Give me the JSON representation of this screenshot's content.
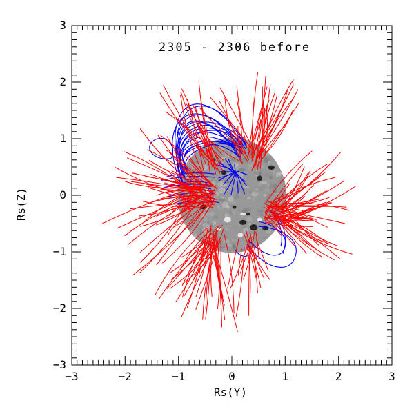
{
  "title": "2305 - 2306 before",
  "colors": {
    "open_field": "#ff0000",
    "closed_field": "#0000ff",
    "axis": "#000000",
    "background": "#ffffff",
    "sun_base": "#989898",
    "sun_dark_spot": "#161616",
    "sun_bright_spot": "#f5f5f5"
  },
  "chart_data": {
    "type": "line",
    "title": "2305 - 2306 before",
    "xlabel": "Rs(Y)",
    "ylabel": "Rs(Z)",
    "xlim": [
      -3,
      3
    ],
    "ylim": [
      -3,
      3
    ],
    "xticks": [
      {
        "v": -3,
        "label": "-3"
      },
      {
        "v": -2,
        "label": "-2"
      },
      {
        "v": -1,
        "label": "-1"
      },
      {
        "v": 0,
        "label": "0"
      },
      {
        "v": 1,
        "label": "1"
      },
      {
        "v": 2,
        "label": "2"
      },
      {
        "v": 3,
        "label": "3"
      }
    ],
    "yticks": [
      {
        "v": -3,
        "label": "-3"
      },
      {
        "v": -2,
        "label": "-2"
      },
      {
        "v": -1,
        "label": "-1"
      },
      {
        "v": 0,
        "label": "0"
      },
      {
        "v": 1,
        "label": "1"
      },
      {
        "v": 2,
        "label": "2"
      },
      {
        "v": 3,
        "label": "3"
      }
    ],
    "x_minor_per_major": 10,
    "y_minor_per_major": 8,
    "grid": false,
    "legend": null,
    "seed": 20230,
    "sun": {
      "center": [
        0,
        0
      ],
      "radius": 1.02,
      "description": "grayscale solar magnetogram sphere",
      "mottle_count": 340,
      "dark_spots": [
        [
          0.21,
          -0.48,
          0.065
        ],
        [
          0.41,
          -0.57,
          0.075
        ],
        [
          0.63,
          -0.58,
          0.05
        ],
        [
          0.05,
          -0.21,
          0.04
        ],
        [
          0.74,
          0.49,
          0.05
        ],
        [
          -0.34,
          0.62,
          0.045
        ],
        [
          -0.53,
          -0.21,
          0.05
        ],
        [
          0.3,
          -0.33,
          0.04
        ],
        [
          0.52,
          0.3,
          0.05
        ],
        [
          -0.15,
          0.4,
          0.04
        ]
      ],
      "bright_spots": [
        [
          -0.08,
          -0.43,
          0.05
        ],
        [
          0.21,
          -0.33,
          0.04
        ],
        [
          0.16,
          -0.7,
          0.05
        ],
        [
          -0.45,
          0.08,
          0.035
        ],
        [
          0.52,
          -0.43,
          0.04
        ],
        [
          -0.25,
          -0.6,
          0.035
        ]
      ]
    },
    "open_field": {
      "name": "open field lines",
      "color": "#ff0000",
      "bundles": [
        {
          "focus": [
            0.8,
            -0.3
          ],
          "spread": 0.4,
          "count": 62,
          "a1": -50,
          "a2": 60,
          "ja": 7,
          "lmin": 0.45,
          "lmax": 1.55,
          "bend": 0.22
        },
        {
          "focus": [
            -0.5,
            0.0
          ],
          "spread": 0.45,
          "count": 62,
          "a1": 124,
          "a2": 236,
          "ja": 7,
          "lmin": 0.5,
          "lmax": 1.95,
          "bend": 0.22
        },
        {
          "focus": [
            0.45,
            0.6
          ],
          "spread": 0.35,
          "count": 22,
          "a1": 50,
          "a2": 88,
          "ja": 6,
          "lmin": 0.7,
          "lmax": 1.6,
          "bend": 0.18
        },
        {
          "focus": [
            0.3,
            0.7
          ],
          "spread": 0.3,
          "count": 12,
          "a1": 86,
          "a2": 145,
          "ja": 8,
          "lmin": 0.6,
          "lmax": 1.55,
          "bend": 0.2
        },
        {
          "focus": [
            -0.35,
            0.55
          ],
          "spread": 0.4,
          "count": 18,
          "a1": 95,
          "a2": 140,
          "ja": 8,
          "lmin": 0.6,
          "lmax": 1.65,
          "bend": 0.22
        },
        {
          "focus": [
            -0.35,
            -0.7
          ],
          "spread": 0.4,
          "count": 22,
          "a1": 215,
          "a2": 258,
          "ja": 7,
          "lmin": 0.5,
          "lmax": 1.75,
          "bend": 0.22
        },
        {
          "focus": [
            -0.3,
            -0.72
          ],
          "spread": 0.3,
          "count": 14,
          "a1": 258,
          "a2": 286,
          "ja": 6,
          "lmin": 0.8,
          "lmax": 1.75,
          "bend": 0.15
        },
        {
          "focus": [
            0.3,
            -0.8
          ],
          "spread": 0.35,
          "count": 16,
          "a1": 245,
          "a2": 300,
          "ja": 7,
          "lmin": 0.4,
          "lmax": 1.35,
          "bend": 0.18
        }
      ]
    },
    "closed_field": {
      "name": "closed field lines",
      "color": "#0000ff",
      "arcade": {
        "count": 17,
        "h0": 1.12,
        "h1": 1.05,
        "apex0": 127,
        "apex1": -9,
        "f1a0": 80,
        "f1a1": -10,
        "f2a0": 150,
        "f2a1": 18,
        "ctrl": 0.38
      },
      "disk_fan": {
        "center": [
          0.08,
          0.4
        ],
        "count": 16,
        "a1": 95,
        "a2": 340,
        "lmin": 0.15,
        "lmax": 0.47,
        "bend": 0.15
      },
      "limb_streaks": {
        "count": 8,
        "y0": -0.12,
        "dy": 0.073,
        "x_in": -0.22,
        "x_out": -1.05
      },
      "extra_loops": [
        [
          [
            0.28,
            -0.86
          ],
          [
            0.62,
            -1.32
          ],
          [
            1.12,
            -1.42
          ],
          [
            1.2,
            -1.04
          ],
          [
            1.26,
            -0.76
          ],
          [
            0.9,
            -0.58
          ],
          [
            0.5,
            -0.55
          ]
        ],
        [
          [
            0.31,
            -0.78
          ],
          [
            0.54,
            -1.06
          ],
          [
            0.94,
            -1.18
          ],
          [
            1.0,
            -0.9
          ],
          [
            1.05,
            -0.7
          ],
          [
            0.8,
            -0.52
          ],
          [
            0.52,
            -0.47
          ]
        ],
        [
          [
            0.8,
            -0.33
          ],
          [
            0.99,
            -0.5
          ],
          [
            1.05,
            -0.78
          ],
          [
            0.96,
            -1.03
          ]
        ],
        [
          [
            0.72,
            -0.27
          ],
          [
            0.9,
            -0.44
          ],
          [
            0.97,
            -0.68
          ],
          [
            0.92,
            -0.9
          ]
        ],
        [
          [
            -1.14,
            0.65
          ],
          [
            -1.5,
            0.6
          ],
          [
            -1.68,
            0.88
          ],
          [
            -1.42,
            0.99
          ],
          [
            -1.22,
            1.07
          ],
          [
            -1.02,
            0.86
          ],
          [
            -1.14,
            0.65
          ]
        ],
        [
          [
            0.05,
            -0.95
          ],
          [
            0.15,
            -1.1
          ],
          [
            0.3,
            -1.12
          ],
          [
            0.38,
            -1.0
          ]
        ]
      ]
    }
  }
}
